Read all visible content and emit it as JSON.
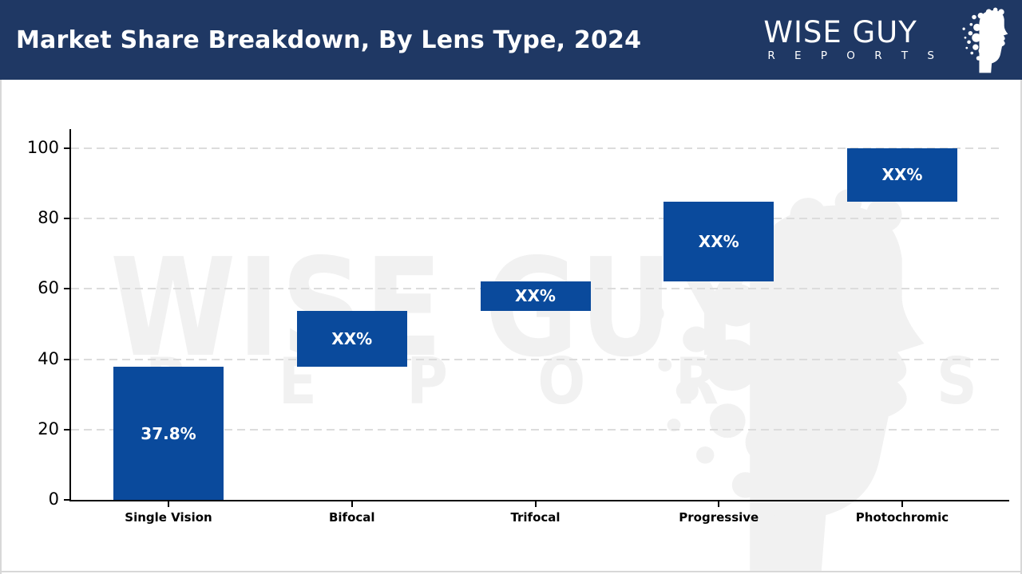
{
  "header": {
    "title": "Market Share Breakdown, By Lens Type, 2024",
    "bg_color": "#1F3864",
    "logo": {
      "line1": "WISE GUY",
      "line2": "R E P O R T S"
    }
  },
  "watermark": {
    "line1": "WISE GUY",
    "line2": "R E P O R T S"
  },
  "chart_data": {
    "type": "bar",
    "subtype": "waterfall",
    "title": "Market Share Breakdown, By Lens Type, 2024",
    "categories": [
      "Single Vision",
      "Bifocal",
      "Trifocal",
      "Progressive",
      "Photochromic"
    ],
    "segments": [
      {
        "start": 0,
        "end": 37.8
      },
      {
        "start": 37.8,
        "end": 53.8
      },
      {
        "start": 53.8,
        "end": 62.2
      },
      {
        "start": 62.2,
        "end": 84.9
      },
      {
        "start": 84.9,
        "end": 100
      }
    ],
    "displayed_labels": [
      "37.8%",
      "XX%",
      "XX%",
      "XX%",
      "XX%"
    ],
    "yticks": [
      0,
      20,
      40,
      60,
      80,
      100
    ],
    "ylim": [
      0,
      100
    ],
    "xlabel": "",
    "ylabel": "",
    "grid": "horizontal-dashed",
    "legend": "none",
    "bar_color": "#0A4A9C",
    "bar_label_color": "#FFFFFF",
    "axis_color": "#000000",
    "gridline_color": "#DCDCDC"
  }
}
